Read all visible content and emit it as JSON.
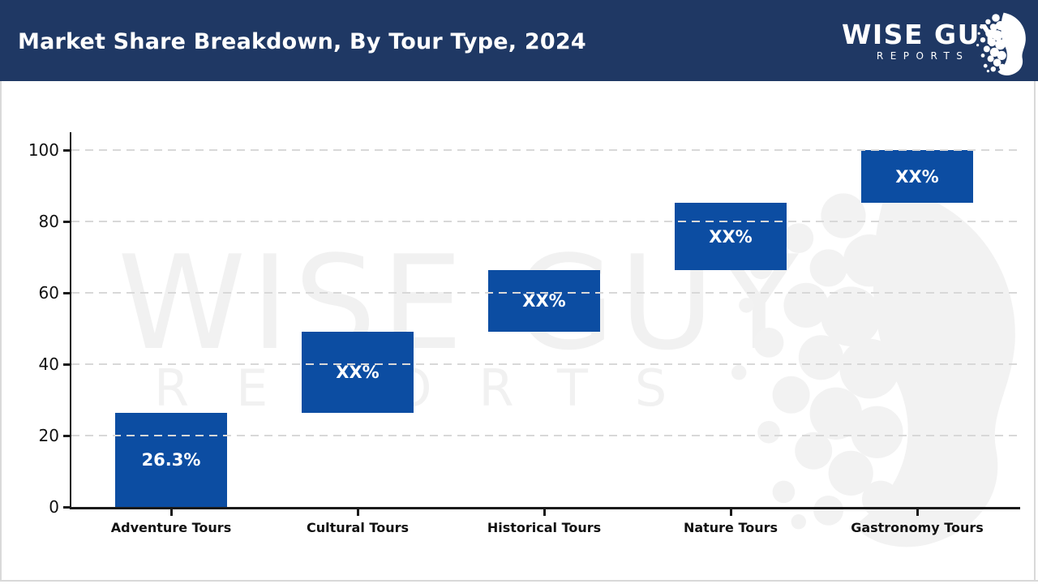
{
  "header": {
    "title": "Market Share Breakdown, By Tour Type, 2024",
    "logo": {
      "line1": "WISE GUY",
      "line2": "REPORTS"
    }
  },
  "watermark": {
    "line1": "WISE GUY",
    "line2": "REPORTS"
  },
  "colors": {
    "header_bg": "#1f3864",
    "bar": "#0c4da2",
    "bar_label": "#ffffff",
    "grid": "#d8d8d8",
    "axis": "#1a1a1a",
    "watermark": "#f1f1f1"
  },
  "chart_data": {
    "type": "bar",
    "subtype": "waterfall",
    "title": "Market Share Breakdown, By Tour Type, 2024",
    "xlabel": "",
    "ylabel": "",
    "categories": [
      "Adventure Tours",
      "Cultural Tours",
      "Historical Tours",
      "Nature Tours",
      "Gastronomy Tours"
    ],
    "segments": [
      {
        "category": "Adventure Tours",
        "start": 0,
        "end": 26.3,
        "label": "26.3%"
      },
      {
        "category": "Cultural Tours",
        "start": 26.3,
        "end": 49.2,
        "label": "XX%"
      },
      {
        "category": "Historical Tours",
        "start": 49.2,
        "end": 66.3,
        "label": "XX%"
      },
      {
        "category": "Nature Tours",
        "start": 66.3,
        "end": 85.2,
        "label": "XX%"
      },
      {
        "category": "Gastronomy Tours",
        "start": 85.2,
        "end": 100,
        "label": "XX%"
      }
    ],
    "yticks": [
      0,
      20,
      40,
      60,
      80,
      100
    ],
    "ylim": [
      0,
      105
    ],
    "grid": "horizontal-dashed",
    "legend": "none"
  }
}
